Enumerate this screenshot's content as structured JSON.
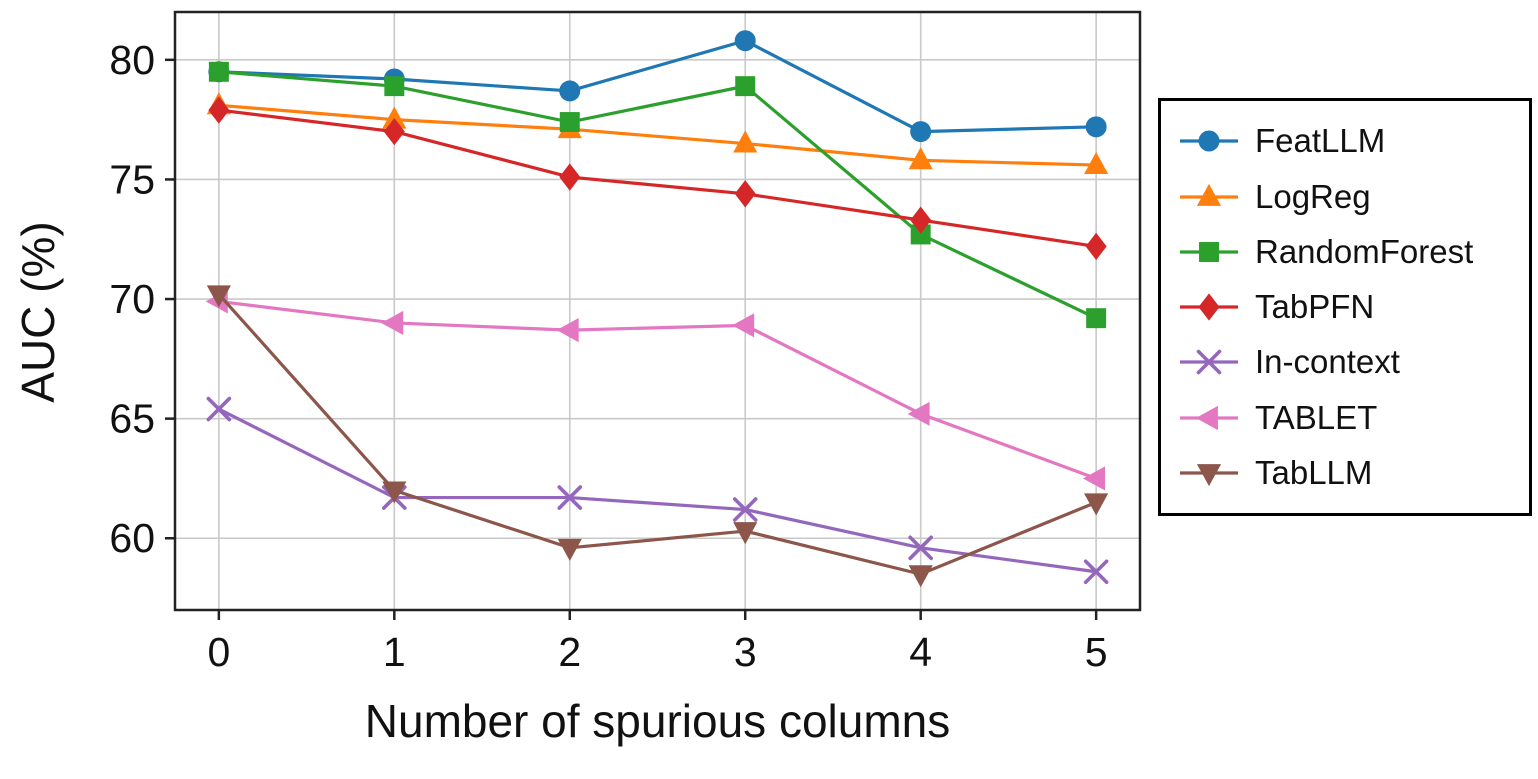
{
  "figure": {
    "background": "#ffffff",
    "grid_color": "#c9c9c9",
    "axis_color": "#222222",
    "text_color": "#111111"
  },
  "chart_data": {
    "type": "line",
    "title": "",
    "xlabel": "Number of spurious columns",
    "ylabel": "AUC (%)",
    "x": [
      0,
      1,
      2,
      3,
      4,
      5
    ],
    "xticks": [
      0,
      1,
      2,
      3,
      4,
      5
    ],
    "yticks": [
      60,
      65,
      70,
      75,
      80
    ],
    "xlim": [
      -0.25,
      5.25
    ],
    "ylim": [
      57.0,
      82.0
    ],
    "grid": true,
    "legend_position": "outside-right",
    "series": [
      {
        "name": "FeatLLM",
        "color": "#1f77b4",
        "marker": "circle",
        "values": [
          79.5,
          79.2,
          78.7,
          80.8,
          77.0,
          77.2
        ]
      },
      {
        "name": "LogReg",
        "color": "#ff7f0e",
        "marker": "triangle-up",
        "values": [
          78.1,
          77.5,
          77.1,
          76.5,
          75.8,
          75.6
        ]
      },
      {
        "name": "RandomForest",
        "color": "#2ca02c",
        "marker": "square",
        "values": [
          79.5,
          78.9,
          77.4,
          78.9,
          72.7,
          69.2
        ]
      },
      {
        "name": "TabPFN",
        "color": "#d62728",
        "marker": "diamond",
        "values": [
          77.9,
          77.0,
          75.1,
          74.4,
          73.3,
          72.2
        ]
      },
      {
        "name": "In-context",
        "color": "#9467bd",
        "marker": "x",
        "values": [
          65.4,
          61.7,
          61.7,
          61.2,
          59.6,
          58.6
        ]
      },
      {
        "name": "TABLET",
        "color": "#e377c2",
        "marker": "triangle-left",
        "values": [
          69.9,
          69.0,
          68.7,
          68.9,
          65.2,
          62.5
        ]
      },
      {
        "name": "TabLLM",
        "color": "#8c564b",
        "marker": "triangle-down",
        "values": [
          70.2,
          62.0,
          59.6,
          60.3,
          58.5,
          61.5
        ]
      }
    ]
  }
}
